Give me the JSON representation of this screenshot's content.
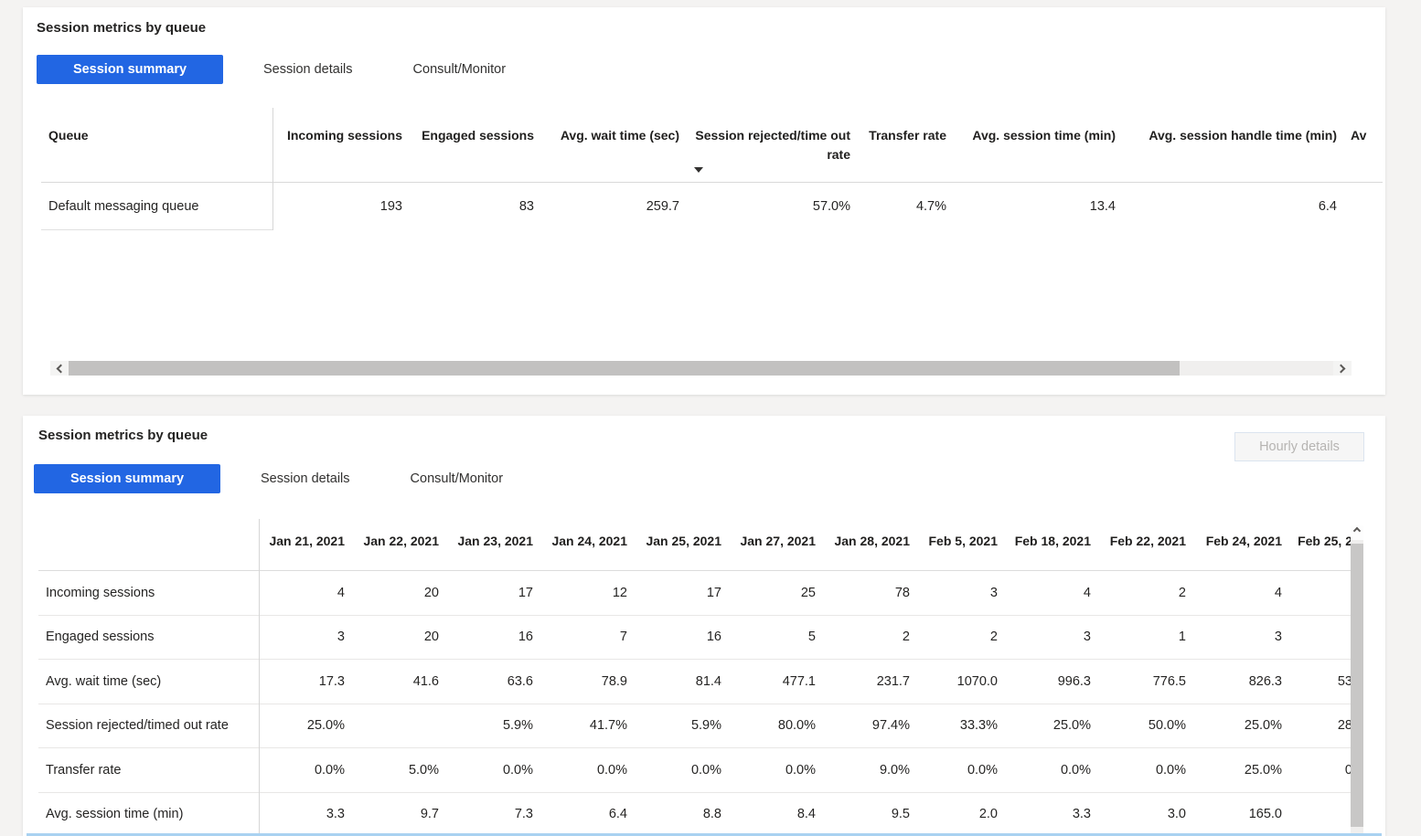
{
  "colors": {
    "accent_blue": "#2266E3",
    "disabled_button_text": "#b6b4b2",
    "bottom_scroll_line": "#a9d2f1"
  },
  "panel1": {
    "title": "Session metrics by queue",
    "tabs": [
      {
        "label": "Session summary",
        "active": true
      },
      {
        "label": "Session details",
        "active": false
      },
      {
        "label": "Consult/Monitor",
        "active": false
      }
    ],
    "table": {
      "columns": [
        {
          "label": "Queue"
        },
        {
          "label": "Incoming sessions"
        },
        {
          "label": "Engaged sessions"
        },
        {
          "label": "Avg. wait time (sec)"
        },
        {
          "label": "Session rejected/time out rate",
          "sort": "desc"
        },
        {
          "label": "Transfer rate"
        },
        {
          "label": "Avg. session time (min)"
        },
        {
          "label": "Avg. session handle time (min)"
        },
        {
          "label": "Av",
          "truncated": true
        }
      ],
      "rows": [
        {
          "queue": "Default messaging queue",
          "values": [
            "193",
            "83",
            "259.7",
            "57.0%",
            "4.7%",
            "13.4",
            "6.4",
            ""
          ]
        }
      ]
    },
    "hscrollbar": {
      "left_icon": "chevron-left",
      "right_icon": "chevron-right"
    }
  },
  "panel2": {
    "title": "Session metrics by queue",
    "hourly_details_label": "Hourly details",
    "tabs": [
      {
        "label": "Session summary",
        "active": true
      },
      {
        "label": "Session details",
        "active": false
      },
      {
        "label": "Consult/Monitor",
        "active": false
      }
    ],
    "table": {
      "date_columns": [
        "Jan 21, 2021",
        "Jan 22, 2021",
        "Jan 23, 2021",
        "Jan 24, 2021",
        "Jan 25, 2021",
        "Jan 27, 2021",
        "Jan 28, 2021",
        "Feb 5, 2021",
        "Feb 18, 2021",
        "Feb 22, 2021",
        "Feb 24, 2021",
        "Feb 25, 2"
      ],
      "rows": [
        {
          "label": "Incoming sessions",
          "values": [
            "4",
            "20",
            "17",
            "12",
            "17",
            "25",
            "78",
            "3",
            "4",
            "2",
            "4",
            ""
          ]
        },
        {
          "label": "Engaged sessions",
          "values": [
            "3",
            "20",
            "16",
            "7",
            "16",
            "5",
            "2",
            "2",
            "3",
            "1",
            "3",
            ""
          ]
        },
        {
          "label": "Avg. wait time (sec)",
          "values": [
            "17.3",
            "41.6",
            "63.6",
            "78.9",
            "81.4",
            "477.1",
            "231.7",
            "1070.0",
            "996.3",
            "776.5",
            "826.3",
            "53"
          ]
        },
        {
          "label": "Session rejected/timed out rate",
          "values": [
            "25.0%",
            "",
            "5.9%",
            "41.7%",
            "5.9%",
            "80.0%",
            "97.4%",
            "33.3%",
            "25.0%",
            "50.0%",
            "25.0%",
            "28"
          ]
        },
        {
          "label": "Transfer rate",
          "values": [
            "0.0%",
            "5.0%",
            "0.0%",
            "0.0%",
            "0.0%",
            "0.0%",
            "9.0%",
            "0.0%",
            "0.0%",
            "0.0%",
            "25.0%",
            "0"
          ]
        },
        {
          "label": "Avg. session time (min)",
          "values": [
            "3.3",
            "9.7",
            "7.3",
            "6.4",
            "8.8",
            "8.4",
            "9.5",
            "2.0",
            "3.3",
            "3.0",
            "165.0",
            ""
          ]
        }
      ]
    },
    "vscrollbar": {
      "up_icon": "chevron-up"
    }
  }
}
